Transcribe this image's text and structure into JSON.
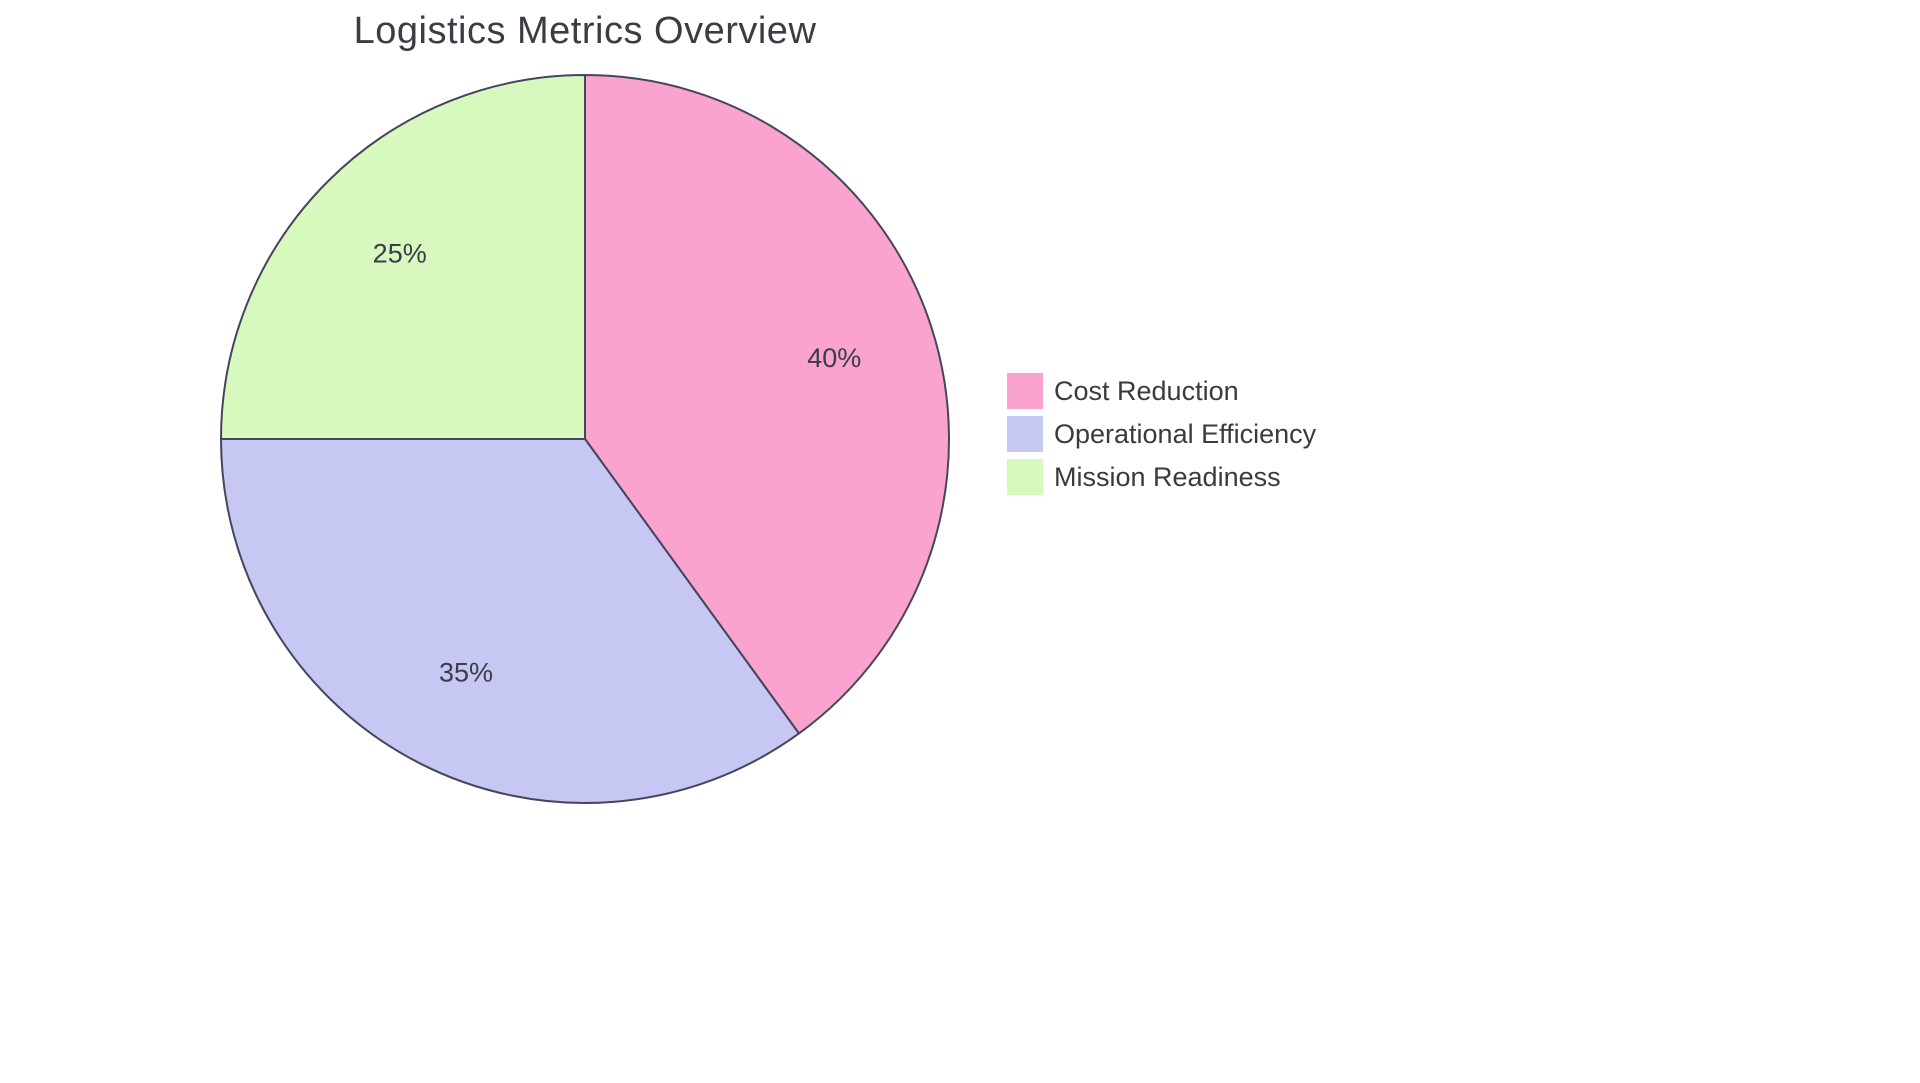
{
  "chart_data": {
    "type": "pie",
    "title": "Logistics Metrics Overview",
    "labels": [
      "Cost Reduction",
      "Operational Efficiency",
      "Mission Readiness"
    ],
    "values": [
      40,
      35,
      25
    ],
    "percent_labels": [
      "40%",
      "35%",
      "25%"
    ],
    "colors": [
      "#F9A3CE",
      "#C6C7F2",
      "#D7F9BD"
    ],
    "stroke_color": "#45455E",
    "label_text_color": "#3b3b4d",
    "legend_position": "right",
    "start_angle_deg": -90,
    "direction": "clockwise"
  }
}
